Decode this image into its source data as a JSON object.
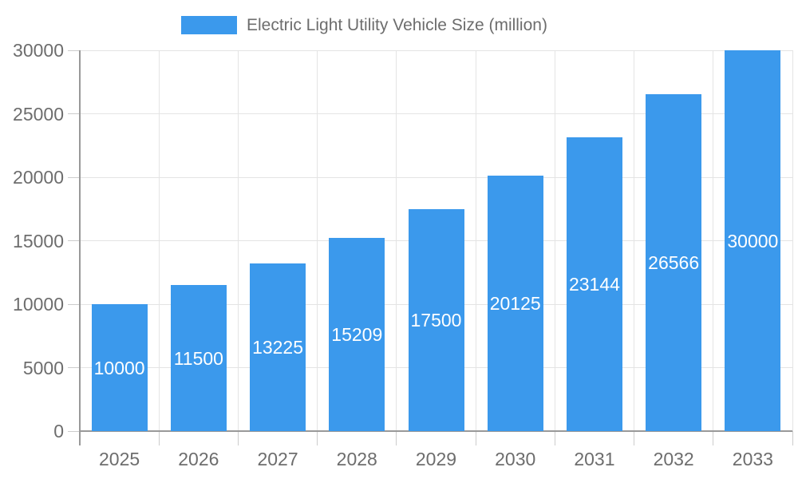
{
  "legend": {
    "label": "Electric Light Utility Vehicle Size (million)"
  },
  "chart_data": {
    "type": "bar",
    "title": "Electric Light Utility Vehicle Size (million)",
    "series": [
      {
        "name": "Electric Light Utility Vehicle Size (million)",
        "values": [
          10000,
          11500,
          13225,
          15209,
          17500,
          20125,
          23144,
          26566,
          30000
        ]
      }
    ],
    "categories": [
      "2025",
      "2026",
      "2027",
      "2028",
      "2029",
      "2030",
      "2031",
      "2032",
      "2033"
    ],
    "value_labels": [
      "10000",
      "11500",
      "13225",
      "15209",
      "17500",
      "20125",
      "23144",
      "26566",
      "30000"
    ],
    "xlabel": "",
    "ylabel": "",
    "ylim": [
      0,
      30000
    ],
    "yticks": [
      0,
      5000,
      10000,
      15000,
      20000,
      25000,
      30000
    ],
    "ytick_labels": [
      "0",
      "5000",
      "10000",
      "15000",
      "20000",
      "25000",
      "30000"
    ],
    "grid": true,
    "legend_position": "top",
    "value_label_position": "inside-center",
    "colors": {
      "bar": "#3b99ec",
      "value_label": "#ffffff",
      "axis_text": "#6d6d6d",
      "grid_line": "#e4e4e4",
      "axis_line": "#999999",
      "tick_line": "#cccccc",
      "background": "#ffffff"
    }
  }
}
